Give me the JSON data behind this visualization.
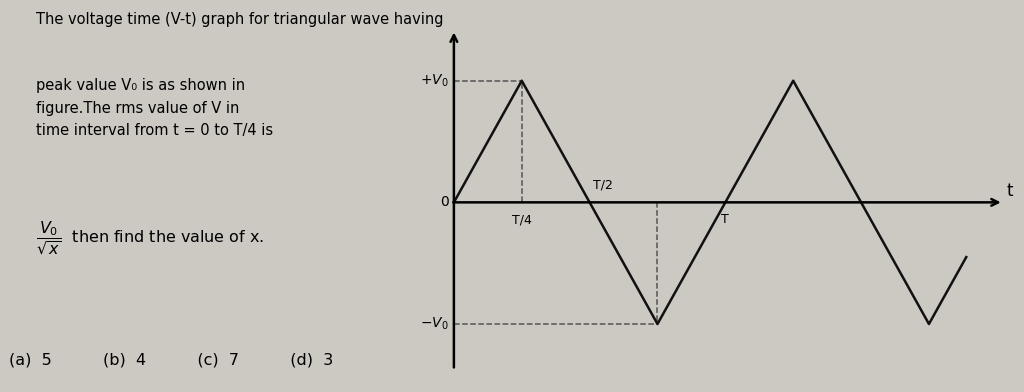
{
  "background_color": "#ccc8c2",
  "wave_color": "#111111",
  "dashed_color": "#555555",
  "V0": 1.0,
  "T": 4.0,
  "figsize": [
    10.24,
    3.92
  ],
  "dpi": 100,
  "axis_linewidth": 1.8,
  "wave_linewidth": 1.8,
  "text_lines": [
    "The voltage time (V-t) graph for triangular wave having",
    "peak value V₀ is as shown in",
    "figure.The rms value of V in",
    "time interval from t = 0 to T/4 is",
    "",
    "V₀/√x  then find the value of x."
  ],
  "answer_options": [
    "(a)  5",
    "(b)  4",
    "(c)  7",
    "(d)  3"
  ]
}
